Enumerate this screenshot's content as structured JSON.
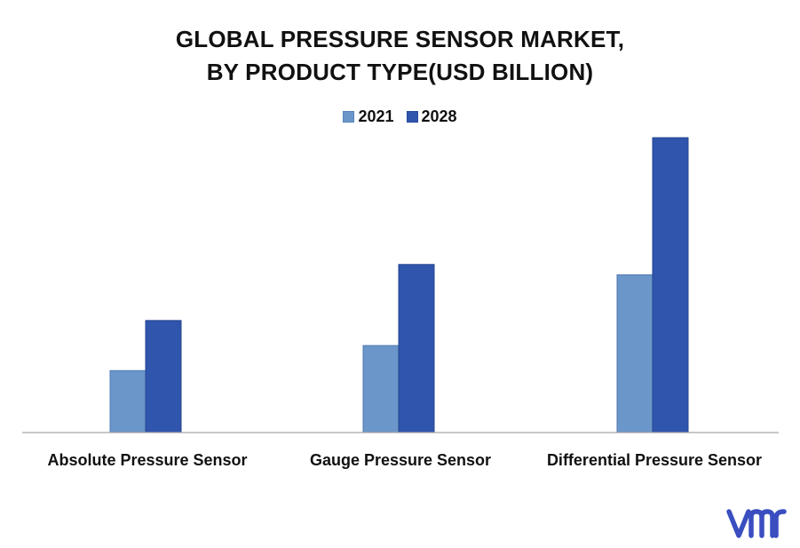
{
  "chart_data": {
    "type": "bar",
    "title": "GLOBAL PRESSURE SENSOR MARKET, BY PRODUCT TYPE(USD BILLION)",
    "title_lines": [
      "GLOBAL PRESSURE SENSOR MARKET,",
      "BY PRODUCT TYPE(USD BILLION)"
    ],
    "categories": [
      "Absolute Pressure Sensor",
      "Gauge Pressure Sensor",
      "Differential Pressure Sensor"
    ],
    "series": [
      {
        "name": "2021",
        "values": [
          2.1,
          2.95,
          5.35
        ],
        "color": "#6b96ca"
      },
      {
        "name": "2028",
        "values": [
          3.8,
          5.7,
          10.0
        ],
        "color": "#2f55ad"
      }
    ],
    "xlabel": "",
    "ylabel": "",
    "ylim": [
      0,
      10
    ],
    "grid": false,
    "legend_position": "top-center"
  },
  "logo": {
    "icon": "vmr-logo-icon",
    "color": "#3a4ec0"
  }
}
